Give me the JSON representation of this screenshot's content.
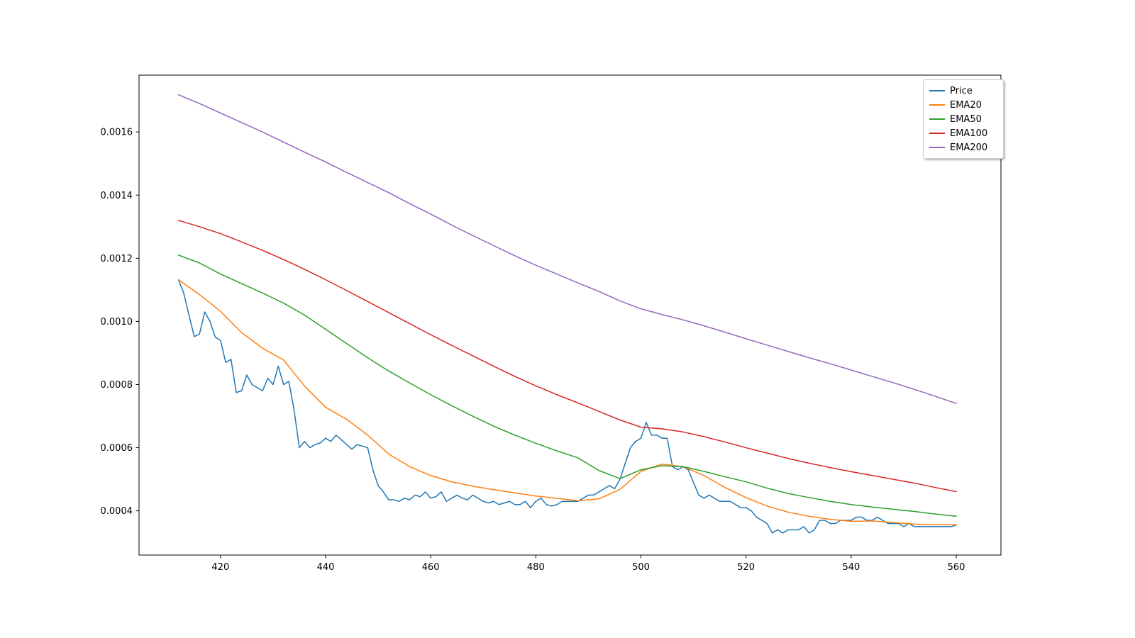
{
  "chart_data": {
    "type": "line",
    "title": "",
    "xlabel": "",
    "ylabel": "",
    "grid": false,
    "legend_position": "upper right",
    "xlim": [
      404.5,
      568.5
    ],
    "ylim": [
      0.00026,
      0.00178
    ],
    "xticks": [
      420,
      440,
      460,
      480,
      500,
      520,
      540,
      560
    ],
    "xtick_labels": [
      "420",
      "440",
      "460",
      "480",
      "500",
      "520",
      "540",
      "560"
    ],
    "yticks": [
      0.0004,
      0.0006,
      0.0008,
      0.001,
      0.0012,
      0.0014,
      0.0016
    ],
    "ytick_labels": [
      "0.0004",
      "0.0006",
      "0.0008",
      "0.0010",
      "0.0012",
      "0.0014",
      "0.0016"
    ],
    "series": [
      {
        "name": "Price",
        "color": "#1f77b4",
        "x_start": 412,
        "x_step": 1,
        "values": [
          0.001132,
          0.00109,
          0.00102,
          0.000952,
          0.00096,
          0.00103,
          0.001,
          0.00095,
          0.00094,
          0.00087,
          0.00088,
          0.000775,
          0.00078,
          0.00083,
          0.0008,
          0.00079,
          0.00078,
          0.00082,
          0.0008,
          0.000858,
          0.0008,
          0.00081,
          0.00072,
          0.0006,
          0.00062,
          0.0006,
          0.00061,
          0.000615,
          0.00063,
          0.00062,
          0.00064,
          0.000625,
          0.00061,
          0.000595,
          0.00061,
          0.000605,
          0.0006,
          0.00053,
          0.00048,
          0.00046,
          0.000435,
          0.000435,
          0.00043,
          0.00044,
          0.000435,
          0.00045,
          0.000445,
          0.00046,
          0.00044,
          0.000445,
          0.00046,
          0.00043,
          0.00044,
          0.00045,
          0.00044,
          0.000435,
          0.00045,
          0.00044,
          0.00043,
          0.000425,
          0.00043,
          0.00042,
          0.000425,
          0.00043,
          0.00042,
          0.00042,
          0.00043,
          0.00041,
          0.00043,
          0.00044,
          0.00042,
          0.000415,
          0.00042,
          0.00043,
          0.00043,
          0.00043,
          0.00043,
          0.00044,
          0.00045,
          0.00045,
          0.00046,
          0.00047,
          0.00048,
          0.00047,
          0.0005,
          0.00055,
          0.0006,
          0.00062,
          0.00063,
          0.00068,
          0.00064,
          0.00064,
          0.00063,
          0.00063,
          0.00054,
          0.00053,
          0.00054,
          0.00053,
          0.00049,
          0.00045,
          0.00044,
          0.00045,
          0.00044,
          0.00043,
          0.00043,
          0.00043,
          0.00042,
          0.00041,
          0.00041,
          0.0004,
          0.00038,
          0.00037,
          0.00036,
          0.00033,
          0.00034,
          0.00033,
          0.00034,
          0.00034,
          0.00034,
          0.00035,
          0.00033,
          0.00034,
          0.00037,
          0.00037,
          0.00036,
          0.00036,
          0.00037,
          0.00037,
          0.00037,
          0.00038,
          0.00038,
          0.00037,
          0.00037,
          0.00038,
          0.00037,
          0.00036,
          0.00036,
          0.00036,
          0.00035,
          0.00036,
          0.00035,
          0.00035,
          0.00035,
          0.00035,
          0.00035,
          0.00035,
          0.00035,
          0.00035,
          0.000355
        ]
      },
      {
        "name": "EMA20",
        "color": "#ff7f0e",
        "x_start": 412,
        "x_step": 4,
        "values": [
          0.001132,
          0.001085,
          0.001032,
          0.000965,
          0.000915,
          0.000878,
          0.000795,
          0.000728,
          0.00069,
          0.00064,
          0.00058,
          0.00054,
          0.000512,
          0.000492,
          0.000478,
          0.000467,
          0.000457,
          0.000447,
          0.00044,
          0.000432,
          0.000438,
          0.000468,
          0.000525,
          0.000548,
          0.00054,
          0.000512,
          0.000474,
          0.000442,
          0.000415,
          0.000396,
          0.000383,
          0.000373,
          0.000367,
          0.000368,
          0.000363,
          0.000358,
          0.000356,
          0.000356
        ]
      },
      {
        "name": "EMA50",
        "color": "#2ca02c",
        "x_start": 412,
        "x_step": 4,
        "values": [
          0.00121,
          0.001185,
          0.00115,
          0.00112,
          0.00109,
          0.001058,
          0.00102,
          0.000975,
          0.00093,
          0.000885,
          0.000843,
          0.000805,
          0.000768,
          0.000733,
          0.0007,
          0.000668,
          0.00064,
          0.000614,
          0.00059,
          0.000568,
          0.000528,
          0.000502,
          0.00053,
          0.000543,
          0.00054,
          0.000525,
          0.000508,
          0.000492,
          0.000472,
          0.000455,
          0.000442,
          0.00043,
          0.00042,
          0.000412,
          0.000405,
          0.000398,
          0.00039,
          0.000383
        ]
      },
      {
        "name": "EMA100",
        "color": "#d62728",
        "x_start": 412,
        "x_step": 4,
        "values": [
          0.00132,
          0.0013,
          0.001278,
          0.001252,
          0.001225,
          0.001196,
          0.001165,
          0.001132,
          0.001098,
          0.001063,
          0.001028,
          0.000993,
          0.000958,
          0.000924,
          0.000891,
          0.000858,
          0.000826,
          0.000796,
          0.000768,
          0.000742,
          0.000715,
          0.000688,
          0.000665,
          0.00066,
          0.00065,
          0.000635,
          0.000618,
          0.0006,
          0.000583,
          0.000566,
          0.000551,
          0.000537,
          0.000524,
          0.000512,
          0.0005,
          0.000488,
          0.000474,
          0.000461
        ]
      },
      {
        "name": "EMA200",
        "color": "#9467bd",
        "x_start": 412,
        "x_step": 4,
        "values": [
          0.001718,
          0.00169,
          0.00166,
          0.00163,
          0.0016,
          0.001568,
          0.001536,
          0.001505,
          0.001472,
          0.00144,
          0.001408,
          0.001373,
          0.00134,
          0.001305,
          0.001272,
          0.00124,
          0.001208,
          0.001178,
          0.00115,
          0.001122,
          0.001095,
          0.001065,
          0.00104,
          0.001022,
          0.001005,
          0.000986,
          0.000966,
          0.000945,
          0.000925,
          0.000905,
          0.000885,
          0.000866,
          0.000846,
          0.000826,
          0.000806,
          0.000785,
          0.000763,
          0.00074
        ]
      }
    ],
    "colors": {
      "axes_edge": "#000000",
      "background": "#ffffff",
      "tick_label": "#000000"
    }
  }
}
